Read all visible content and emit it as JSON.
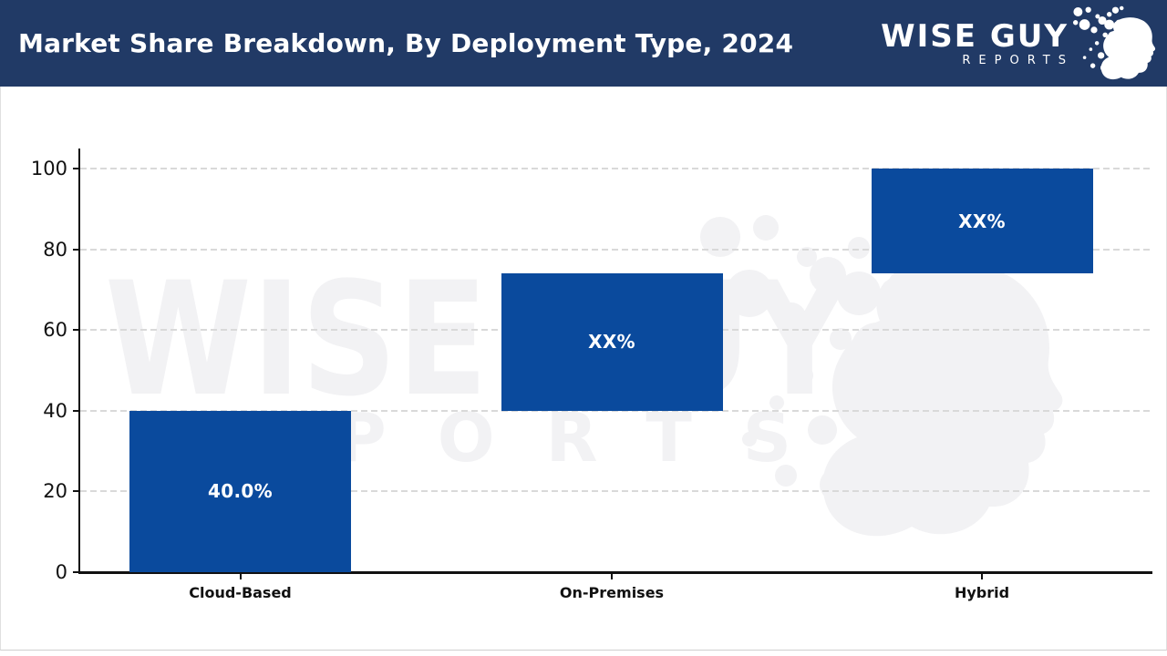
{
  "header": {
    "title": "Market Share Breakdown, By Deployment Type, 2024",
    "logo": {
      "line1": "WISE GUY",
      "line2": "REPORTS"
    }
  },
  "watermark": {
    "line1": "WISE GUY",
    "line2": "REPORTS"
  },
  "colors": {
    "header_bg": "#213A66",
    "bar": "#0A4A9D",
    "grid": "#D9D9D9",
    "axis": "#111111",
    "tick_text": "#111111",
    "bar_label_text": "#FFFFFF",
    "watermark": "#F2F2F4"
  },
  "chart_data": {
    "type": "bar",
    "variant": "cumulative-percentage-breakdown (floating stacked bars)",
    "title": "Market Share Breakdown, By Deployment Type, 2024",
    "categories": [
      "Cloud-Based",
      "On-Premises",
      "Hybrid"
    ],
    "segments": [
      {
        "category": "Cloud-Based",
        "start": 0,
        "end": 40,
        "label": "40.0%"
      },
      {
        "category": "On-Premises",
        "start": 40,
        "end": 74,
        "label": "XX%"
      },
      {
        "category": "Hybrid",
        "start": 74,
        "end": 100,
        "label": "XX%"
      }
    ],
    "values": [
      40,
      34,
      26
    ],
    "yticks": [
      0,
      20,
      40,
      60,
      80,
      100
    ],
    "ylim": [
      0,
      100
    ],
    "xlabel": "",
    "ylabel": "",
    "grid": "dashed-horizontal",
    "legend": false
  }
}
